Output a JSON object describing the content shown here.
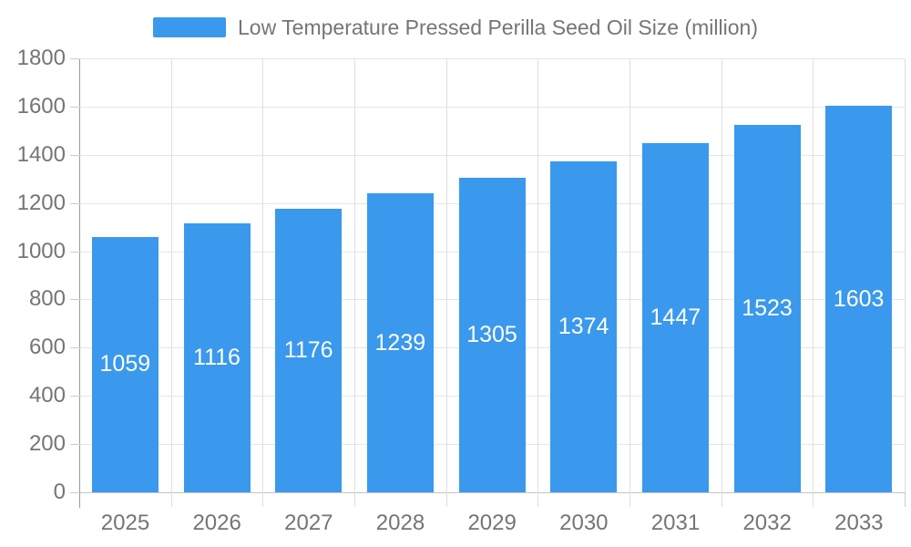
{
  "chart_data": {
    "type": "bar",
    "title": "Low Temperature Pressed Perilla Seed Oil Size (million)",
    "categories": [
      "2025",
      "2026",
      "2027",
      "2028",
      "2029",
      "2030",
      "2031",
      "2032",
      "2033"
    ],
    "values": [
      1059,
      1116,
      1176,
      1239,
      1305,
      1374,
      1447,
      1523,
      1603
    ],
    "xlabel": "",
    "ylabel": "",
    "ylim": [
      0,
      1800
    ],
    "ytick_step": 200,
    "ytick_labels": [
      "0",
      "200",
      "400",
      "600",
      "800",
      "1000",
      "1200",
      "1400",
      "1600",
      "1800"
    ],
    "grid": true,
    "legend_position": "top-center",
    "value_label_position": "inside-center",
    "colors": {
      "bar": "#3a99ec",
      "bar_value_text": "#ffffff",
      "axis_text": "#757575",
      "title_text": "#757575",
      "gridline_horizontal": "#e6e6e6",
      "gridline_vertical": "#e0e0e0",
      "y_axis_line": "#999999",
      "x_axis_line": "#c4c4c4",
      "tick": "#cccccc"
    }
  }
}
